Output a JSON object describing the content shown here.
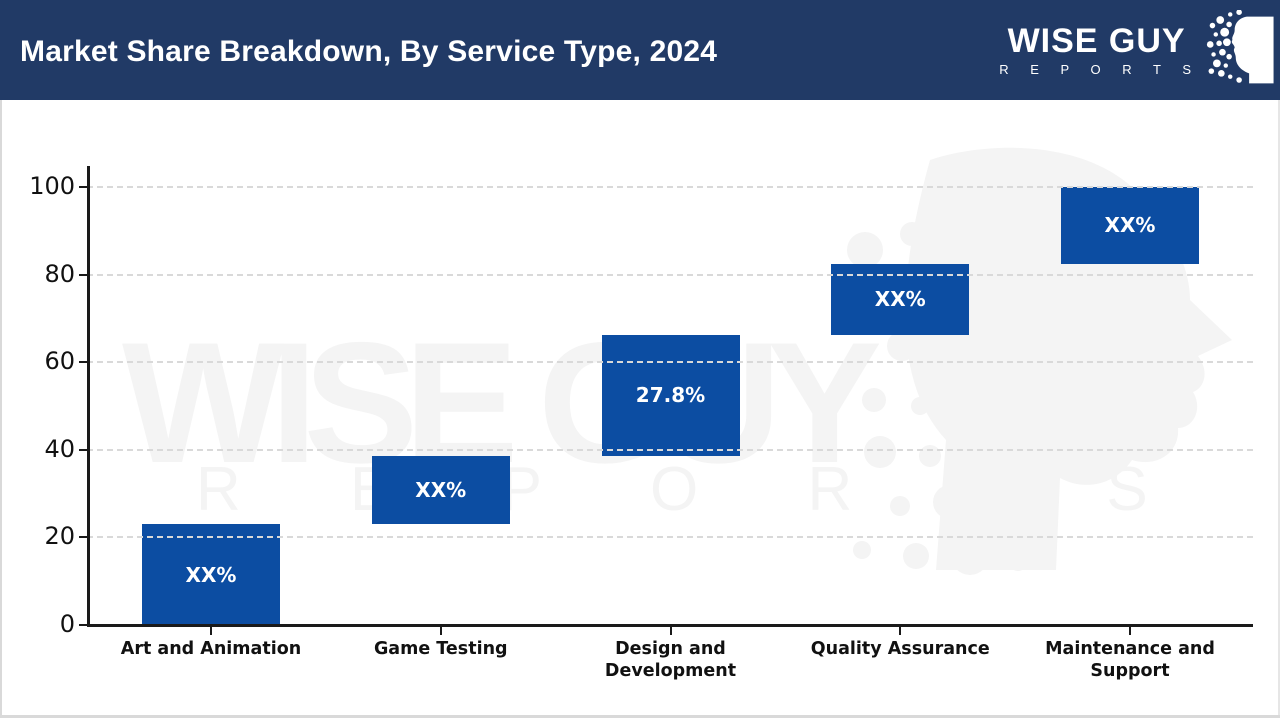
{
  "header": {
    "title": "Market Share Breakdown, By Service Type, 2024",
    "logo": {
      "name": "WISE GUY",
      "sub": "R E P O R T S"
    }
  },
  "watermark": {
    "text_main": "WISE GUY",
    "text_sub": "R E P O R T S"
  },
  "chart_data": {
    "type": "bar",
    "subtype": "floating-segment-waterfall",
    "title": "Market Share Breakdown, By Service Type, 2024",
    "xlabel": "",
    "ylabel": "",
    "ylim": [
      0,
      100
    ],
    "yticks": [
      0,
      20,
      40,
      60,
      80,
      100
    ],
    "grid": "horizontal-dashed",
    "legend": "none",
    "categories": [
      "Art and Animation",
      "Game Testing",
      "Design and Development",
      "Quality Assurance",
      "Maintenance and Support"
    ],
    "series": [
      {
        "name": "Market Share (%)",
        "bar_ranges": [
          [
            0,
            23
          ],
          [
            23,
            38.5
          ],
          [
            38.5,
            66.3
          ],
          [
            66.3,
            82.5
          ],
          [
            82.5,
            100
          ]
        ],
        "bar_labels": [
          "XX%",
          "XX%",
          "27.8%",
          "XX%",
          "XX%"
        ]
      }
    ]
  },
  "colors": {
    "header_bg": "#213A66",
    "bar": "#0C4DA2",
    "bar_label": "#FFFFFF",
    "grid": "#D9D9D9",
    "axis": "#1A1A1A",
    "text": "#111111",
    "watermark": "#F3F3F3",
    "footer_strip": "#D9D9D9"
  }
}
